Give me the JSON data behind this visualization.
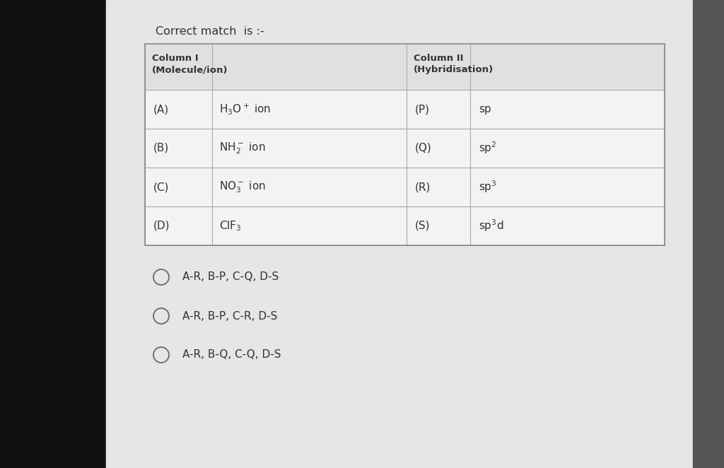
{
  "title": "Correct match  is :-",
  "title_fontsize": 11.5,
  "col1_header1": "Column I",
  "col1_header2": "(Molecule/ion)",
  "col2_header1": "Column II",
  "col2_header2": "(Hybridisation)",
  "rows": [
    {
      "label": "(A)",
      "molecule_parts": [
        [
          "H",
          0
        ],
        [
          "3",
          -1
        ],
        [
          "O",
          0
        ],
        [
          "+",
          1
        ],
        [
          " ion",
          0
        ]
      ],
      "plabel": "(P)",
      "hybrid_parts": [
        [
          "sp",
          0
        ]
      ]
    },
    {
      "label": "(B)",
      "molecule_parts": [
        [
          "NH",
          0
        ],
        [
          "2",
          -1
        ],
        [
          "⁻",
          1
        ],
        [
          " ion",
          0
        ]
      ],
      "plabel": "(Q)",
      "hybrid_parts": [
        [
          "sp",
          0
        ],
        [
          "2",
          1
        ]
      ]
    },
    {
      "label": "(C)",
      "molecule_parts": [
        [
          "NO",
          0
        ],
        [
          "3",
          -1
        ],
        [
          "⁻",
          1
        ],
        [
          " ion",
          0
        ]
      ],
      "plabel": "(R)",
      "hybrid_parts": [
        [
          "sp",
          0
        ],
        [
          "3",
          1
        ]
      ]
    },
    {
      "label": "(D)",
      "molecule_parts": [
        [
          "ClF",
          0
        ],
        [
          "3",
          -1
        ]
      ],
      "plabel": "(S)",
      "hybrid_parts": [
        [
          "sp",
          0
        ],
        [
          "3",
          1
        ],
        [
          "d",
          0
        ]
      ]
    }
  ],
  "options": [
    "A-R, B-P, C-Q, D-S",
    "A-R, B-P, C-R, D-S",
    "A-R, B-Q, C-Q, D-S"
  ],
  "font_color": "#333333",
  "header_fontsize": 9.5,
  "cell_fontsize": 11,
  "option_fontsize": 11,
  "bg_left_color": "#111111",
  "bg_right_color": "#dddddd",
  "paper_color": "#f0eeec",
  "table_line_color": "#aaaaaa",
  "header_bg": "#e0dedd"
}
